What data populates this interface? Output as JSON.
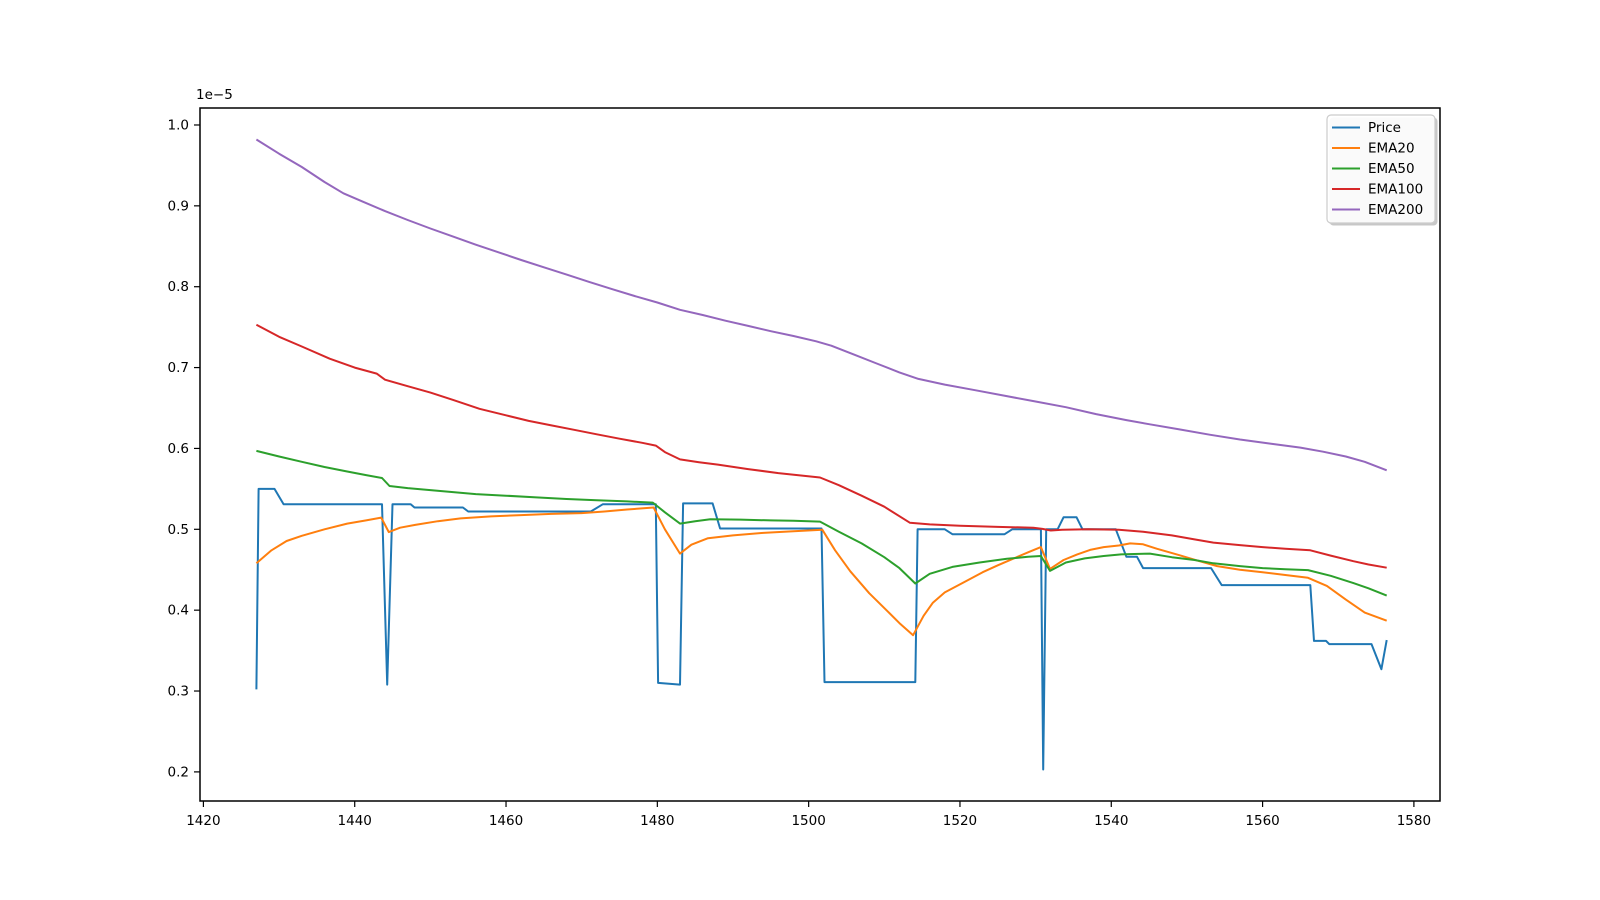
{
  "figure": {
    "background": "#ffffff"
  },
  "chart_data": {
    "type": "line",
    "title": "",
    "xlabel": "",
    "ylabel": "",
    "grid": false,
    "legend_position": "upper right",
    "y_offset_text": "1e−5",
    "y_unit": "1e-5",
    "xlim": [
      1419.55,
      1583.45
    ],
    "ylim": [
      0.164,
      1.021
    ],
    "x_ticks": [
      "1420",
      "1440",
      "1460",
      "1480",
      "1500",
      "1520",
      "1540",
      "1560",
      "1580"
    ],
    "y_ticks": [
      "0.2",
      "0.3",
      "0.4",
      "0.5",
      "0.6",
      "0.7",
      "0.8",
      "0.9",
      "1.0"
    ],
    "series": [
      {
        "name": "Price",
        "color": "#1f77b4",
        "points": [
          [
            1427.0,
            0.302
          ],
          [
            1427.3,
            0.55
          ],
          [
            1429.4,
            0.55
          ],
          [
            1430.6,
            0.531
          ],
          [
            1443.6,
            0.531
          ],
          [
            1444.3,
            0.308
          ],
          [
            1445.0,
            0.531
          ],
          [
            1447.4,
            0.531
          ],
          [
            1447.9,
            0.527
          ],
          [
            1454.3,
            0.527
          ],
          [
            1455.0,
            0.522
          ],
          [
            1471.2,
            0.522
          ],
          [
            1472.8,
            0.531
          ],
          [
            1479.8,
            0.531
          ],
          [
            1480.1,
            0.31
          ],
          [
            1483.0,
            0.308
          ],
          [
            1483.4,
            0.532
          ],
          [
            1487.3,
            0.532
          ],
          [
            1488.3,
            0.501
          ],
          [
            1501.7,
            0.501
          ],
          [
            1502.1,
            0.311
          ],
          [
            1514.1,
            0.311
          ],
          [
            1514.4,
            0.5
          ],
          [
            1518.0,
            0.5
          ],
          [
            1519.0,
            0.494
          ],
          [
            1525.9,
            0.494
          ],
          [
            1526.9,
            0.5
          ],
          [
            1530.7,
            0.5
          ],
          [
            1531.0,
            0.203
          ],
          [
            1531.4,
            0.5
          ],
          [
            1532.9,
            0.5
          ],
          [
            1533.7,
            0.515
          ],
          [
            1535.4,
            0.515
          ],
          [
            1536.2,
            0.5
          ],
          [
            1540.6,
            0.5
          ],
          [
            1542.0,
            0.466
          ],
          [
            1543.4,
            0.466
          ],
          [
            1544.2,
            0.452
          ],
          [
            1553.2,
            0.452
          ],
          [
            1554.6,
            0.431
          ],
          [
            1566.3,
            0.431
          ],
          [
            1566.8,
            0.362
          ],
          [
            1568.4,
            0.362
          ],
          [
            1568.8,
            0.358
          ],
          [
            1574.4,
            0.358
          ],
          [
            1575.7,
            0.327
          ],
          [
            1576.4,
            0.363
          ]
        ]
      },
      {
        "name": "EMA20",
        "color": "#ff7f0e",
        "points": [
          [
            1427.0,
            0.458
          ],
          [
            1429.0,
            0.474
          ],
          [
            1431.0,
            0.4855
          ],
          [
            1433.0,
            0.492
          ],
          [
            1436.0,
            0.5
          ],
          [
            1439.0,
            0.507
          ],
          [
            1441.5,
            0.511
          ],
          [
            1443.5,
            0.5145
          ],
          [
            1444.5,
            0.4965
          ],
          [
            1446.0,
            0.502
          ],
          [
            1448.0,
            0.5055
          ],
          [
            1451.0,
            0.51
          ],
          [
            1454.0,
            0.5135
          ],
          [
            1458.0,
            0.516
          ],
          [
            1462.0,
            0.5175
          ],
          [
            1466.0,
            0.519
          ],
          [
            1470.0,
            0.52
          ],
          [
            1473.0,
            0.522
          ],
          [
            1476.0,
            0.5245
          ],
          [
            1479.5,
            0.527
          ],
          [
            1481.0,
            0.5
          ],
          [
            1483.0,
            0.47
          ],
          [
            1484.5,
            0.481
          ],
          [
            1486.7,
            0.489
          ],
          [
            1490.0,
            0.4925
          ],
          [
            1494.0,
            0.4955
          ],
          [
            1498.0,
            0.4975
          ],
          [
            1501.8,
            0.4995
          ],
          [
            1503.5,
            0.474
          ],
          [
            1505.5,
            0.448
          ],
          [
            1508.0,
            0.421
          ],
          [
            1510.5,
            0.398
          ],
          [
            1512.0,
            0.384
          ],
          [
            1513.8,
            0.369
          ],
          [
            1515.2,
            0.393
          ],
          [
            1516.4,
            0.409
          ],
          [
            1518.0,
            0.422
          ],
          [
            1520.4,
            0.434
          ],
          [
            1523.0,
            0.447
          ],
          [
            1525.0,
            0.4555
          ],
          [
            1527.0,
            0.4635
          ],
          [
            1529.0,
            0.4715
          ],
          [
            1530.7,
            0.478
          ],
          [
            1531.9,
            0.451
          ],
          [
            1533.7,
            0.462
          ],
          [
            1535.5,
            0.469
          ],
          [
            1537.2,
            0.4745
          ],
          [
            1539.0,
            0.478
          ],
          [
            1541.0,
            0.48
          ],
          [
            1542.5,
            0.4825
          ],
          [
            1544.2,
            0.4815
          ],
          [
            1546.0,
            0.476
          ],
          [
            1549.0,
            0.468
          ],
          [
            1551.5,
            0.461
          ],
          [
            1554.0,
            0.4545
          ],
          [
            1557.0,
            0.45
          ],
          [
            1560.0,
            0.447
          ],
          [
            1563.0,
            0.4435
          ],
          [
            1566.0,
            0.44
          ],
          [
            1568.5,
            0.43
          ],
          [
            1571.0,
            0.413
          ],
          [
            1573.5,
            0.397
          ],
          [
            1576.4,
            0.387
          ]
        ]
      },
      {
        "name": "EMA50",
        "color": "#2ca02c",
        "points": [
          [
            1427.0,
            0.597
          ],
          [
            1430.0,
            0.59
          ],
          [
            1433.0,
            0.5835
          ],
          [
            1436.0,
            0.577
          ],
          [
            1439.0,
            0.5715
          ],
          [
            1441.5,
            0.567
          ],
          [
            1443.6,
            0.5635
          ],
          [
            1444.6,
            0.5535
          ],
          [
            1447.0,
            0.551
          ],
          [
            1450.0,
            0.5485
          ],
          [
            1453.0,
            0.546
          ],
          [
            1456.0,
            0.5435
          ],
          [
            1460.0,
            0.5415
          ],
          [
            1464.0,
            0.5395
          ],
          [
            1468.0,
            0.5375
          ],
          [
            1472.0,
            0.536
          ],
          [
            1476.0,
            0.5345
          ],
          [
            1479.4,
            0.533
          ],
          [
            1481.0,
            0.521
          ],
          [
            1483.0,
            0.507
          ],
          [
            1485.0,
            0.51
          ],
          [
            1487.0,
            0.5125
          ],
          [
            1491.0,
            0.512
          ],
          [
            1495.0,
            0.511
          ],
          [
            1498.0,
            0.5105
          ],
          [
            1501.5,
            0.5095
          ],
          [
            1504.0,
            0.497
          ],
          [
            1507.0,
            0.4825
          ],
          [
            1510.0,
            0.4655
          ],
          [
            1512.0,
            0.452
          ],
          [
            1514.1,
            0.433
          ],
          [
            1516.0,
            0.445
          ],
          [
            1519.0,
            0.4535
          ],
          [
            1522.6,
            0.459
          ],
          [
            1526.2,
            0.4635
          ],
          [
            1529.0,
            0.466
          ],
          [
            1530.7,
            0.467
          ],
          [
            1531.9,
            0.4485
          ],
          [
            1534.0,
            0.459
          ],
          [
            1536.5,
            0.464
          ],
          [
            1539.0,
            0.467
          ],
          [
            1541.3,
            0.469
          ],
          [
            1543.0,
            0.4695
          ],
          [
            1545.1,
            0.47
          ],
          [
            1548.0,
            0.4655
          ],
          [
            1551.0,
            0.462
          ],
          [
            1553.5,
            0.458
          ],
          [
            1557.0,
            0.4545
          ],
          [
            1560.0,
            0.452
          ],
          [
            1563.0,
            0.4505
          ],
          [
            1566.0,
            0.4495
          ],
          [
            1569.0,
            0.4425
          ],
          [
            1572.0,
            0.4335
          ],
          [
            1574.0,
            0.427
          ],
          [
            1576.4,
            0.418
          ]
        ]
      },
      {
        "name": "EMA100",
        "color": "#d62728",
        "points": [
          [
            1427.0,
            0.753
          ],
          [
            1430.0,
            0.738
          ],
          [
            1433.0,
            0.726
          ],
          [
            1436.7,
            0.711
          ],
          [
            1440.0,
            0.7
          ],
          [
            1442.9,
            0.6925
          ],
          [
            1444.0,
            0.685
          ],
          [
            1447.0,
            0.677
          ],
          [
            1450.0,
            0.669
          ],
          [
            1453.0,
            0.66
          ],
          [
            1456.5,
            0.649
          ],
          [
            1460.0,
            0.641
          ],
          [
            1463.0,
            0.634
          ],
          [
            1466.0,
            0.6285
          ],
          [
            1469.0,
            0.623
          ],
          [
            1472.0,
            0.6175
          ],
          [
            1475.0,
            0.612
          ],
          [
            1478.0,
            0.607
          ],
          [
            1479.8,
            0.6035
          ],
          [
            1481.0,
            0.5955
          ],
          [
            1483.0,
            0.5865
          ],
          [
            1485.5,
            0.583
          ],
          [
            1488.0,
            0.58
          ],
          [
            1492.0,
            0.5745
          ],
          [
            1496.0,
            0.5695
          ],
          [
            1501.5,
            0.564
          ],
          [
            1504.0,
            0.5545
          ],
          [
            1507.0,
            0.5415
          ],
          [
            1510.0,
            0.528
          ],
          [
            1513.4,
            0.508
          ],
          [
            1516.0,
            0.506
          ],
          [
            1520.0,
            0.5045
          ],
          [
            1525.0,
            0.503
          ],
          [
            1529.7,
            0.502
          ],
          [
            1530.9,
            0.5005
          ],
          [
            1532.0,
            0.4985
          ],
          [
            1533.5,
            0.4995
          ],
          [
            1537.0,
            0.5
          ],
          [
            1541.0,
            0.4995
          ],
          [
            1544.2,
            0.497
          ],
          [
            1548.0,
            0.4925
          ],
          [
            1551.0,
            0.4875
          ],
          [
            1553.5,
            0.4835
          ],
          [
            1557.0,
            0.4805
          ],
          [
            1560.0,
            0.478
          ],
          [
            1563.0,
            0.476
          ],
          [
            1566.3,
            0.474
          ],
          [
            1569.0,
            0.4675
          ],
          [
            1572.0,
            0.4605
          ],
          [
            1574.0,
            0.4565
          ],
          [
            1576.4,
            0.4525
          ]
        ]
      },
      {
        "name": "EMA200",
        "color": "#9467bd",
        "points": [
          [
            1427.0,
            0.982
          ],
          [
            1430.0,
            0.9645
          ],
          [
            1433.0,
            0.948
          ],
          [
            1436.0,
            0.9295
          ],
          [
            1438.5,
            0.9155
          ],
          [
            1441.0,
            0.9055
          ],
          [
            1444.0,
            0.8935
          ],
          [
            1447.0,
            0.8825
          ],
          [
            1450.0,
            0.872
          ],
          [
            1453.0,
            0.862
          ],
          [
            1456.0,
            0.852
          ],
          [
            1459.0,
            0.8425
          ],
          [
            1462.0,
            0.833
          ],
          [
            1465.0,
            0.824
          ],
          [
            1468.0,
            0.815
          ],
          [
            1471.0,
            0.806
          ],
          [
            1474.0,
            0.797
          ],
          [
            1477.0,
            0.7885
          ],
          [
            1480.0,
            0.7805
          ],
          [
            1483.0,
            0.7715
          ],
          [
            1486.0,
            0.765
          ],
          [
            1489.0,
            0.758
          ],
          [
            1492.0,
            0.7515
          ],
          [
            1495.0,
            0.745
          ],
          [
            1498.0,
            0.739
          ],
          [
            1501.0,
            0.7325
          ],
          [
            1503.0,
            0.727
          ],
          [
            1506.0,
            0.716
          ],
          [
            1509.0,
            0.705
          ],
          [
            1512.0,
            0.694
          ],
          [
            1514.5,
            0.686
          ],
          [
            1518.0,
            0.679
          ],
          [
            1522.0,
            0.672
          ],
          [
            1526.0,
            0.665
          ],
          [
            1530.0,
            0.658
          ],
          [
            1534.0,
            0.651
          ],
          [
            1538.0,
            0.6425
          ],
          [
            1542.0,
            0.635
          ],
          [
            1545.0,
            0.63
          ],
          [
            1549.0,
            0.6235
          ],
          [
            1553.0,
            0.617
          ],
          [
            1557.0,
            0.611
          ],
          [
            1561.0,
            0.606
          ],
          [
            1565.0,
            0.601
          ],
          [
            1568.0,
            0.596
          ],
          [
            1571.0,
            0.59
          ],
          [
            1573.5,
            0.5835
          ],
          [
            1576.4,
            0.573
          ]
        ]
      }
    ]
  },
  "legend": {
    "labels": [
      "Price",
      "EMA20",
      "EMA50",
      "EMA100",
      "EMA200"
    ],
    "border_color": "#cccccc",
    "background": "#ffffff"
  }
}
